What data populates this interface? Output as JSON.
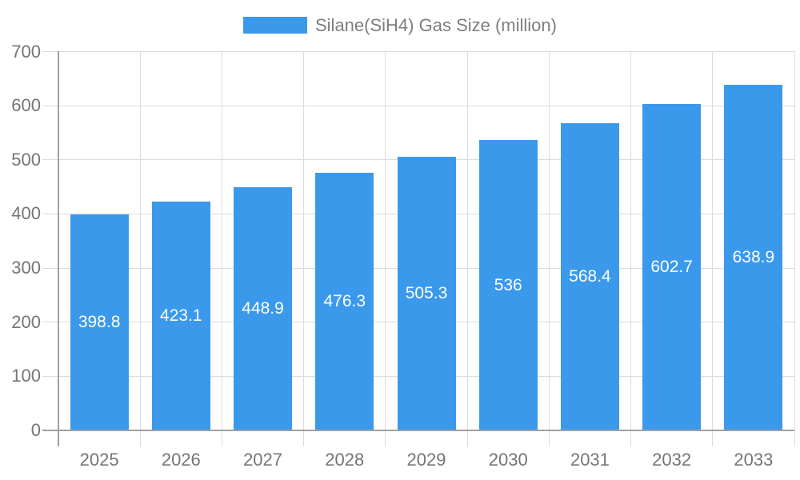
{
  "legend": {
    "label": "Silane(SiH4) Gas Size (million)"
  },
  "colors": {
    "bar": "#3b99ec",
    "axis": "#a0a0a0",
    "grid": "#dcdcdc",
    "tick_label": "#757575",
    "bar_label": "#ffffff",
    "legend_text": "#7d7d7d",
    "background": "#ffffff"
  },
  "chart_data": {
    "type": "bar",
    "title": "Silane(SiH4) Gas Size (million)",
    "categories": [
      "2025",
      "2026",
      "2027",
      "2028",
      "2029",
      "2030",
      "2031",
      "2032",
      "2033"
    ],
    "values": [
      398.8,
      423.1,
      448.9,
      476.3,
      505.3,
      536,
      568.4,
      602.7,
      638.9
    ],
    "value_labels": [
      "398.8",
      "423.1",
      "448.9",
      "476.3",
      "505.3",
      "536",
      "568.4",
      "602.7",
      "638.9"
    ],
    "series_name": "Silane(SiH4) Gas Size (million)",
    "xlabel": "",
    "ylabel": "",
    "ylim": [
      0,
      700
    ],
    "yticks": [
      0,
      100,
      200,
      300,
      400,
      500,
      600,
      700
    ],
    "grid": true,
    "legend_position": "top",
    "bar_label_position": "inside-middle"
  }
}
